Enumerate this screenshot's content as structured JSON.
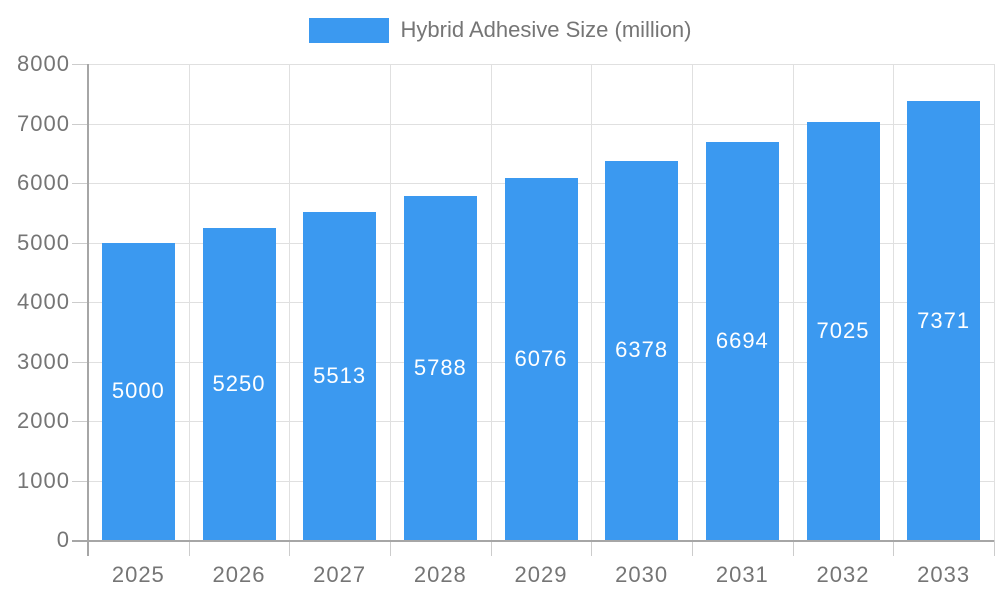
{
  "legend": {
    "label": "Hybrid Adhesive Size (million)",
    "swatch_color": "#3B99F0"
  },
  "chart_data": {
    "type": "bar",
    "title": "",
    "xlabel": "",
    "ylabel": "",
    "categories": [
      "2025",
      "2026",
      "2027",
      "2028",
      "2029",
      "2030",
      "2031",
      "2032",
      "2033"
    ],
    "series": [
      {
        "name": "Hybrid Adhesive Size (million)",
        "values": [
          5000,
          5250,
          5513,
          5788,
          6076,
          6378,
          6694,
          7025,
          7371
        ],
        "color": "#3B99F0"
      }
    ],
    "bar_value_labels": [
      "5000",
      "5250",
      "5513",
      "5788",
      "6076",
      "6378",
      "6694",
      "7025",
      "7371"
    ],
    "bar_label_color": "#ffffff",
    "ylim": [
      0,
      8000
    ],
    "y_tick_step": 1000,
    "y_tick_labels": [
      "0",
      "1000",
      "2000",
      "3000",
      "4000",
      "5000",
      "6000",
      "7000",
      "8000"
    ],
    "grid": true,
    "legend_position": "top",
    "axis_text_color": "#757575",
    "gridline_color": "#e0e0e0",
    "axis_line_color": "#a6a6a6",
    "tick_color": "#cccccc",
    "background_color": "#ffffff"
  }
}
